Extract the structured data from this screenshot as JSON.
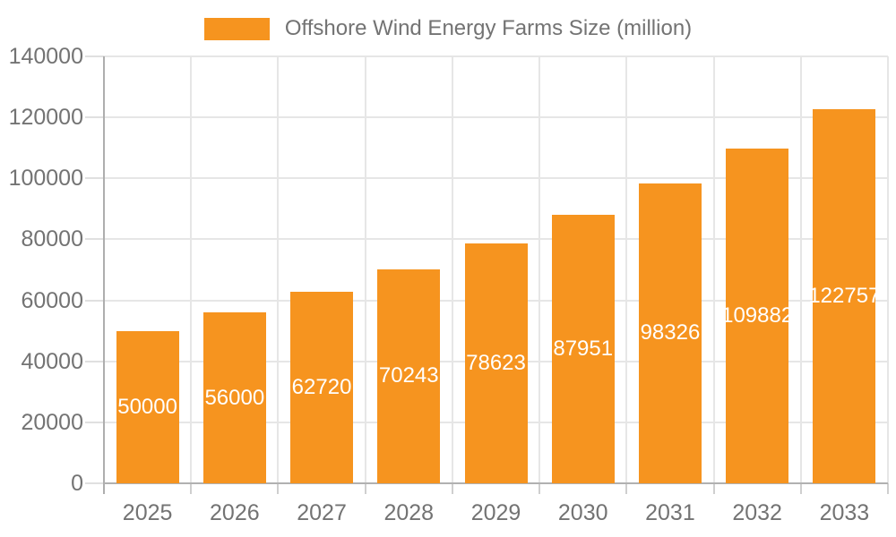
{
  "chart_data": {
    "type": "bar",
    "title": "",
    "legend": "Offshore Wind Energy Farms Size (million)",
    "legend_position": "top-center",
    "categories": [
      "2025",
      "2026",
      "2027",
      "2028",
      "2029",
      "2030",
      "2031",
      "2032",
      "2033"
    ],
    "values": [
      50000,
      56000,
      62720,
      70243,
      78623,
      87951,
      98326,
      109882,
      122757
    ],
    "xlabel": "",
    "ylabel": "",
    "ylim": [
      0,
      140000
    ],
    "ytick_step": 20000,
    "ytick_labels": [
      "0",
      "20000",
      "40000",
      "60000",
      "80000",
      "100000",
      "120000",
      "140000"
    ],
    "grid": "horizontal and vertical",
    "bar_label_position": "inside-center",
    "colors": {
      "bar": "#f6941f",
      "bar_label": "#ffffff",
      "axis_label": "#737373",
      "legend_text": "#737373",
      "grid_line": "#e6e6e6",
      "axis_line": "#b1b1b1",
      "background": "#ffffff"
    }
  }
}
